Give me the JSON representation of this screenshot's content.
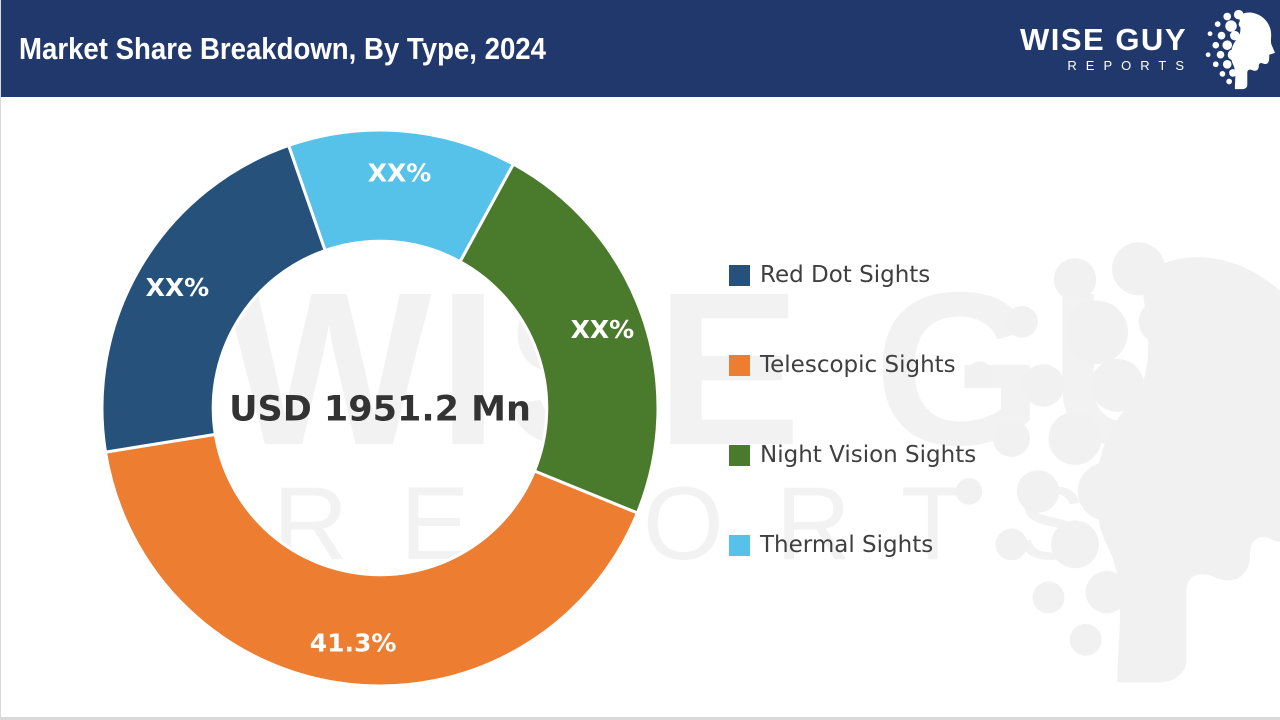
{
  "header": {
    "title": "Market Share Breakdown, By Type, 2024",
    "logo": {
      "line1": "WISE GUY",
      "line2": "REPORTS"
    },
    "bg_color": "#20386B"
  },
  "watermark": {
    "line1": "WISE GUY",
    "line2": "REPORTS"
  },
  "chart_data": {
    "type": "donut",
    "title": "Market Share Breakdown, By Type, 2024",
    "center_label": "USD 1951.2 Mn",
    "start_angle_deg": -19.2,
    "inner_radius_ratio": 0.6,
    "legend_position": "right",
    "slices": [
      {
        "name": "Thermal Sights",
        "value": 13.3,
        "label": "XX%",
        "color": "#56C1E9"
      },
      {
        "name": "Night Vision Sights",
        "value": 23.2,
        "label": "XX%",
        "color": "#4A7A2B"
      },
      {
        "name": "Telescopic Sights",
        "value": 41.3,
        "label": "41.3%",
        "color": "#ED7D31"
      },
      {
        "name": "Red Dot Sights",
        "value": 22.2,
        "label": "XX%",
        "color": "#25517A"
      }
    ],
    "legend_order": [
      "Red Dot Sights",
      "Telescopic Sights",
      "Night Vision Sights",
      "Thermal Sights"
    ]
  }
}
